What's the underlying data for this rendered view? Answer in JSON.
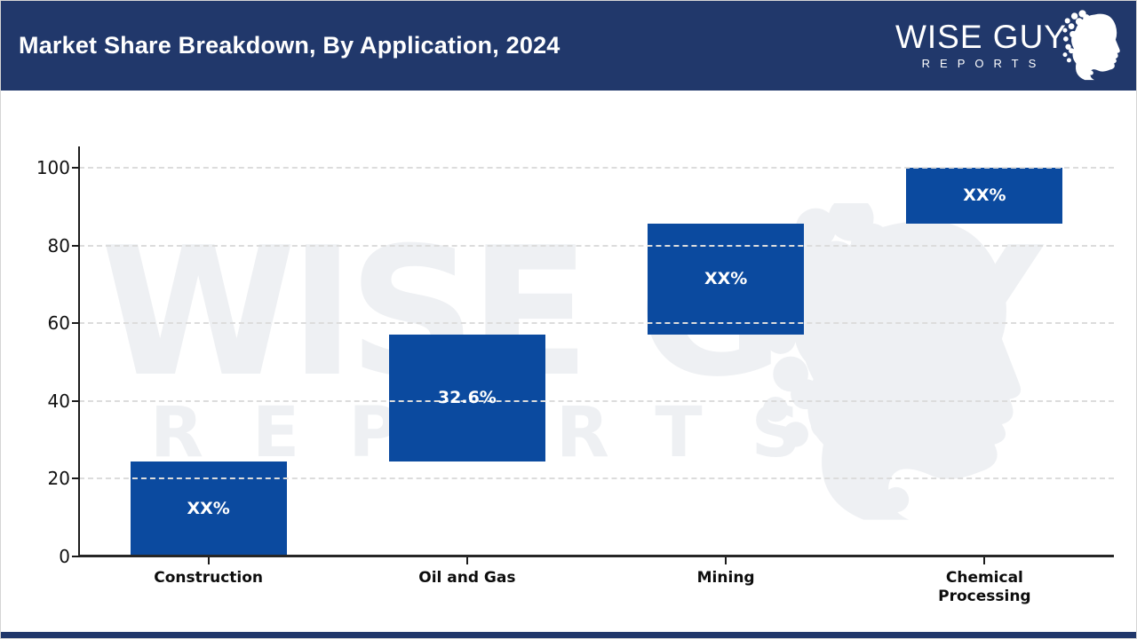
{
  "header": {
    "title": "Market Share Breakdown, By Application, 2024",
    "logo": {
      "line1": "WISE GUY",
      "line2": "REPORTS"
    }
  },
  "watermark": {
    "line1": "WISE GUY",
    "line2": "REPORTS"
  },
  "colors": {
    "header_bg": "#21386b",
    "footer_bg": "#21386b",
    "bar": "#0b4a9f",
    "grid": "#dcdcdc",
    "axis": "#1c1c1c",
    "bar_label_text": "#ffffff",
    "watermark": "#eef0f3"
  },
  "chart_data": {
    "type": "bar",
    "subtype": "waterfall",
    "title": "Market Share Breakdown, By Application, 2024",
    "categories": [
      "Construction",
      "Oil and Gas",
      "Mining",
      "Chemical Processing"
    ],
    "segments": [
      {
        "category": "Construction",
        "start": 0,
        "end": 24.5,
        "value_label": "XX%"
      },
      {
        "category": "Oil and Gas",
        "start": 24.5,
        "end": 57.1,
        "value_label": "32.6%"
      },
      {
        "category": "Mining",
        "start": 57.1,
        "end": 85.7,
        "value_label": "XX%"
      },
      {
        "category": "Chemical Processing",
        "start": 85.7,
        "end": 100,
        "value_label": "XX%"
      }
    ],
    "xlabel": "",
    "ylabel": "",
    "ylim": [
      0,
      100
    ],
    "yticks": [
      0,
      20,
      40,
      60,
      80,
      100
    ],
    "grid": "dashed-horizontal",
    "legend": "none",
    "bar_color": "#0b4a9f"
  }
}
